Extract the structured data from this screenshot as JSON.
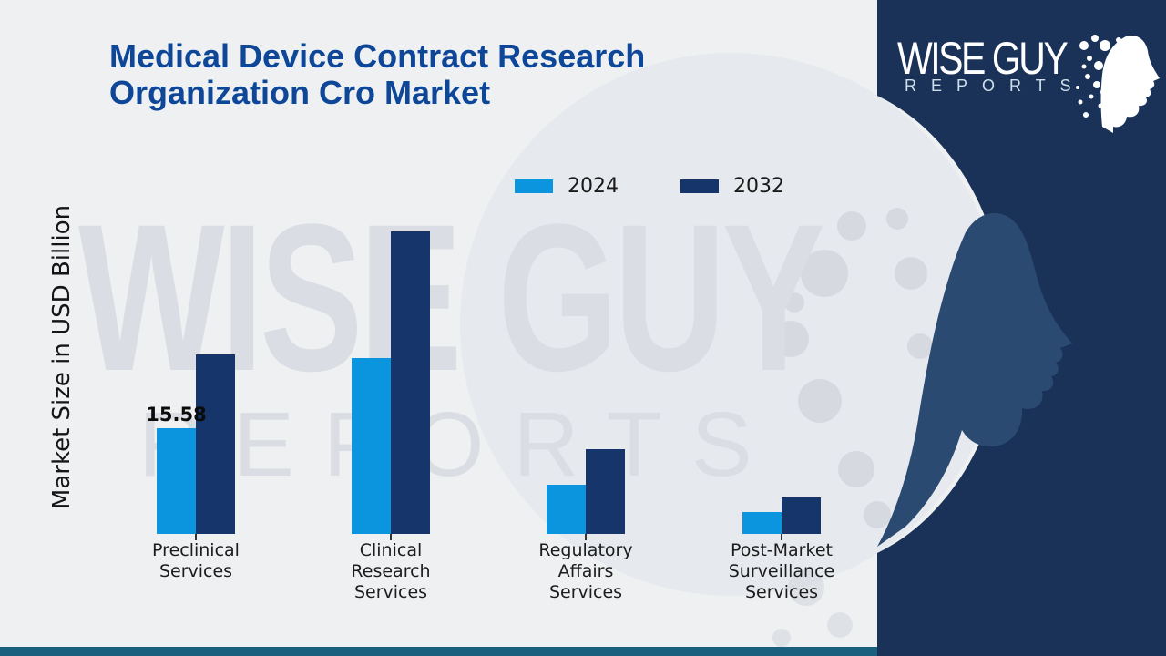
{
  "page_title": "Medical Device Contract Research Organization Cro Market",
  "header": {
    "title": "Medical Device Contract Research Organization Cro Market"
  },
  "logo": {
    "brand_line1": "WISE GUY",
    "brand_line2": "REPORTS"
  },
  "watermark": {
    "line1": "WISE GUY",
    "line2": "REPORTS"
  },
  "y_axis_label": "Market Size in USD Billion",
  "legend": {
    "items": [
      {
        "label": "2024"
      },
      {
        "label": "2032"
      }
    ]
  },
  "colors": {
    "background": "#eef0f2",
    "title_blue": "#0e4698",
    "series_2024": "#0b95de",
    "series_2032": "#15356b",
    "navy_band": "#1a3158",
    "face_blue": "#2b4a72",
    "circle_gray": "#e6e9ed",
    "blob_gray": "#d6dae0",
    "teal_strip": "#1a607e",
    "watermark_gray": "#dadde3"
  },
  "chart_data": {
    "type": "bar",
    "title": "Medical Device Contract Research Organization Cro Market",
    "xlabel": "",
    "ylabel": "Market Size in USD Billion",
    "categories": [
      "Preclinical Services",
      "Clinical Research Services",
      "Regulatory Affairs Services",
      "Post-Market Surveillance Services"
    ],
    "series": [
      {
        "name": "2024",
        "values": [
          15.58,
          25.9,
          7.3,
          3.2
        ]
      },
      {
        "name": "2032",
        "values": [
          26.4,
          44.6,
          12.5,
          5.4
        ]
      }
    ],
    "value_labels": [
      {
        "series": "2024",
        "category_index": 0,
        "text": "15.58"
      }
    ],
    "ylim": [
      0,
      48
    ],
    "grid": false,
    "legend_position": "top-center"
  }
}
